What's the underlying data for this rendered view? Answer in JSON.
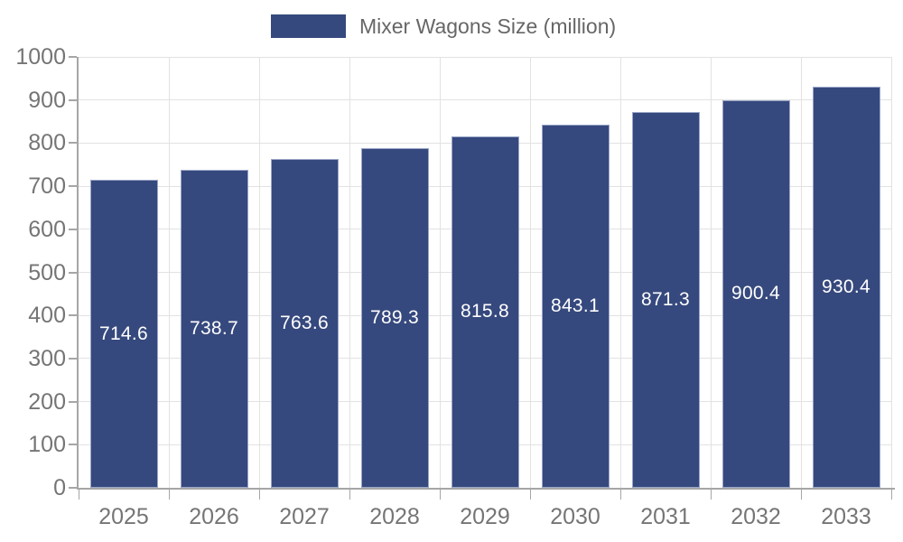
{
  "chart_data": {
    "type": "bar",
    "title": "",
    "legend_label": "Mixer Wagons Size (million)",
    "legend_position": "top",
    "categories": [
      "2025",
      "2026",
      "2027",
      "2028",
      "2029",
      "2030",
      "2031",
      "2032",
      "2033"
    ],
    "values": [
      714.6,
      738.7,
      763.6,
      789.3,
      815.8,
      843.1,
      871.3,
      900.4,
      930.4
    ],
    "value_labels": [
      "714.6",
      "738.7",
      "763.6",
      "789.3",
      "815.8",
      "843.1",
      "871.3",
      "900.4",
      "930.4"
    ],
    "xlabel": "",
    "ylabel": "",
    "ylim": [
      0,
      1000
    ],
    "ytick_step": 100,
    "yticks": [
      0,
      100,
      200,
      300,
      400,
      500,
      600,
      700,
      800,
      900,
      1000
    ],
    "grid": true,
    "colors": {
      "bar": "#36497e",
      "bar_label": "#ffffff",
      "grid": "#e2e2e2",
      "axis": "#a6a6a6",
      "axis_text": "#757575",
      "legend_text": "#666666",
      "background": "#ffffff"
    }
  }
}
